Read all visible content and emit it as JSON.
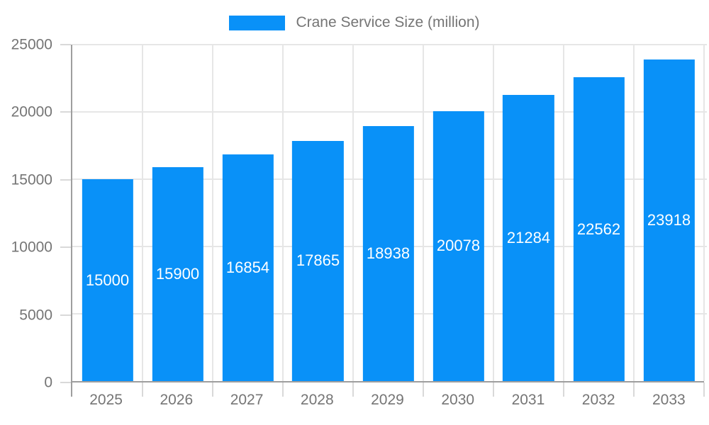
{
  "legend": {
    "label": "Crane Service Size (million)"
  },
  "chart_data": {
    "type": "bar",
    "title": "",
    "xlabel": "",
    "ylabel": "",
    "series_name": "Crane Service Size (million)",
    "categories": [
      "2025",
      "2026",
      "2027",
      "2028",
      "2029",
      "2030",
      "2031",
      "2032",
      "2033"
    ],
    "values": [
      15000,
      15900,
      16854,
      17865,
      18938,
      20078,
      21284,
      22562,
      23918
    ],
    "bar_labels": [
      "15000",
      "15900",
      "16854",
      "17865",
      "18938",
      "20078",
      "21284",
      "22562",
      "23918"
    ],
    "ylim": [
      0,
      25000
    ],
    "yticks": [
      0,
      5000,
      10000,
      15000,
      20000,
      25000
    ],
    "grid": true,
    "legend_position": "top-center"
  },
  "colors": {
    "bar": "#0991f8",
    "grid": "#e6e6e6",
    "axis": "#9e9e9e",
    "tick": "#d9d9d9",
    "text": "#757575",
    "bar_label": "#ffffff",
    "background": "#ffffff"
  }
}
